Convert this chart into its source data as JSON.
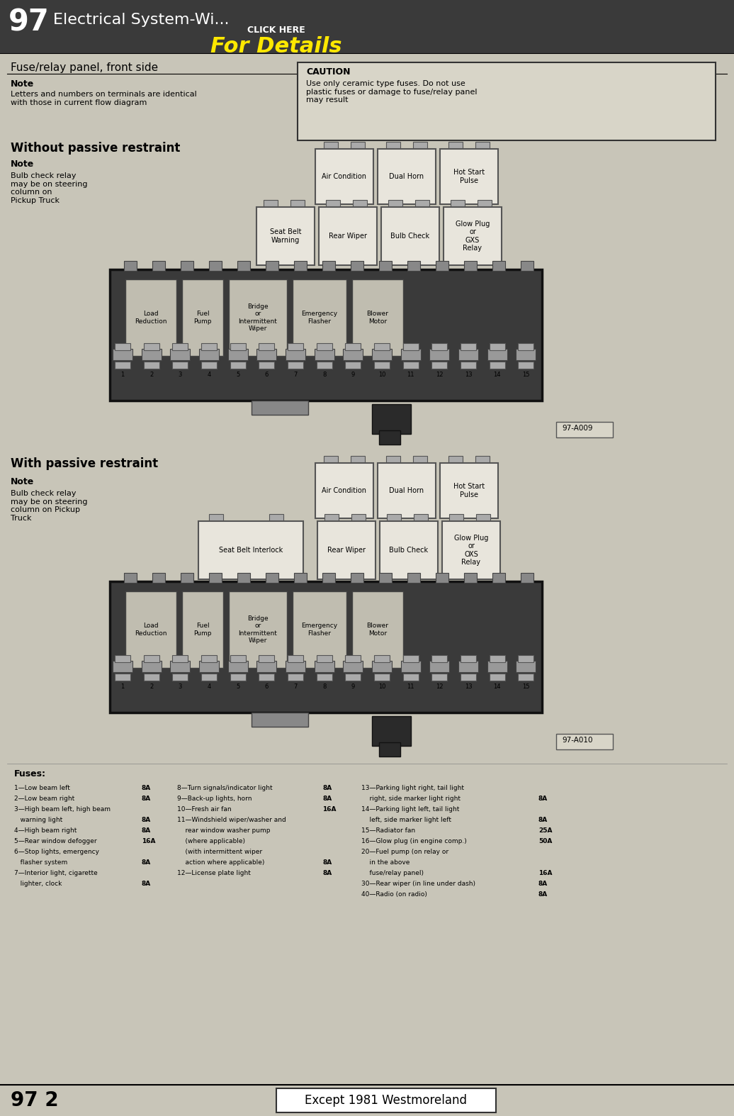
{
  "bg_top": "#3a3a3a",
  "bg_main": "#c8c5b8",
  "title_number": "97",
  "title_text": "Electrical System-Wi...",
  "click_here": "CLICK HERE",
  "for_details": "For Details",
  "section1_title": "Fuse/relay panel, front side",
  "note1_title": "Note",
  "note1_text": "Letters and numbers on terminals are identical\nwith those in current flow diagram",
  "section1_sub": "Without passive restraint",
  "note2_title": "Note",
  "note2_text": "Bulb check relay\nmay be on steering\ncolumn on\nPickup Truck",
  "caution_title": "CAUTION",
  "caution_text": "Use only ceramic type fuses. Do not use\nplastic fuses or damage to fuse/relay panel\nmay result",
  "relay_row1": [
    "Air Condition",
    "Dual Horn",
    "Hot Start\nPulse"
  ],
  "relay_row2": [
    "Seat Belt\nWarning",
    "Rear Wiper",
    "Bulb Check",
    "Glow Plug\nor\nGXS\nRelay"
  ],
  "relay_row3_main": [
    "Load\nReduction",
    "Fuel\nPump",
    "Bridge\nor\nIntermittent\nWiper",
    "Emergency\nFlasher",
    "Blower\nMotor"
  ],
  "fuse_numbers": [
    "1",
    "2",
    "3",
    "4",
    "5",
    "6",
    "7",
    "8",
    "9",
    "10",
    "11",
    "12",
    "13",
    "14",
    "15"
  ],
  "diagram1_ref": "97-A009",
  "section2_title": "With passive restraint",
  "note3_title": "Note",
  "note3_text": "Bulb check relay\nmay be on steering\ncolumn on Pickup\nTruck",
  "relay2_row1": [
    "Air Condition",
    "Dual Horn",
    "Hot Start\nPulse"
  ],
  "relay2_row2": [
    "Seat Belt Interlock",
    "Rear Wiper",
    "Bulb Check",
    "Glow Plug\nor\nOXS\nRelay"
  ],
  "relay2_row3_main": [
    "Load\nReduction",
    "Fuel\nPump",
    "Bridge\nor\nIntermittent\nWiper",
    "Emergency\nFlasher",
    "Blower\nMotor"
  ],
  "diagram2_ref": "97-A010",
  "fuses_title": "Fuses:",
  "footer_number": "97 2",
  "footer_text": "Except 1981 Westmoreland",
  "panel_dark": "#3a3a3a",
  "panel_relay_bg": "#c0bdb0",
  "relay_bg": "#e8e5dc",
  "relay_border": "#555555",
  "fuse_top_bg": "#999999",
  "fuse_body_bg": "#bbbbbb",
  "connector_dark": "#2a2a2a"
}
